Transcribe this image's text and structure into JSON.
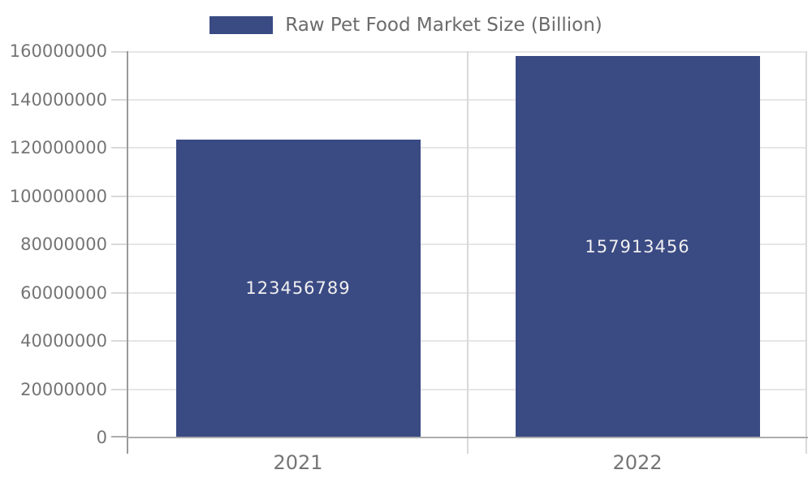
{
  "chart_data": {
    "type": "bar",
    "title": "Raw Pet Food Market Size (Billion)",
    "legend_position": "top",
    "categories": [
      "2021",
      "2022"
    ],
    "series": [
      {
        "name": "Raw Pet Food Market Size (Billion)",
        "values": [
          123456789,
          157913456
        ]
      }
    ],
    "value_labels": [
      "123456789",
      "157913456"
    ],
    "xlabel": "",
    "ylabel": "",
    "ylim": [
      0,
      160000000
    ],
    "ytick_step": 20000000,
    "ytick_labels": [
      "0",
      "20000000",
      "40000000",
      "60000000",
      "80000000",
      "100000000",
      "120000000",
      "140000000",
      "160000000"
    ],
    "grid": true,
    "bar_labels_inside": true,
    "colors": {
      "bar": "#3a4a83",
      "grid_line": "#e6e6e6",
      "category_separator": "#d9d9d9",
      "axis_line": "#9a9a9a",
      "zero_line": "#adadad",
      "tick_label": "#757575",
      "title_text": "#6b6b6b",
      "value_text": "#f0f0f0",
      "background": "#ffffff"
    }
  }
}
